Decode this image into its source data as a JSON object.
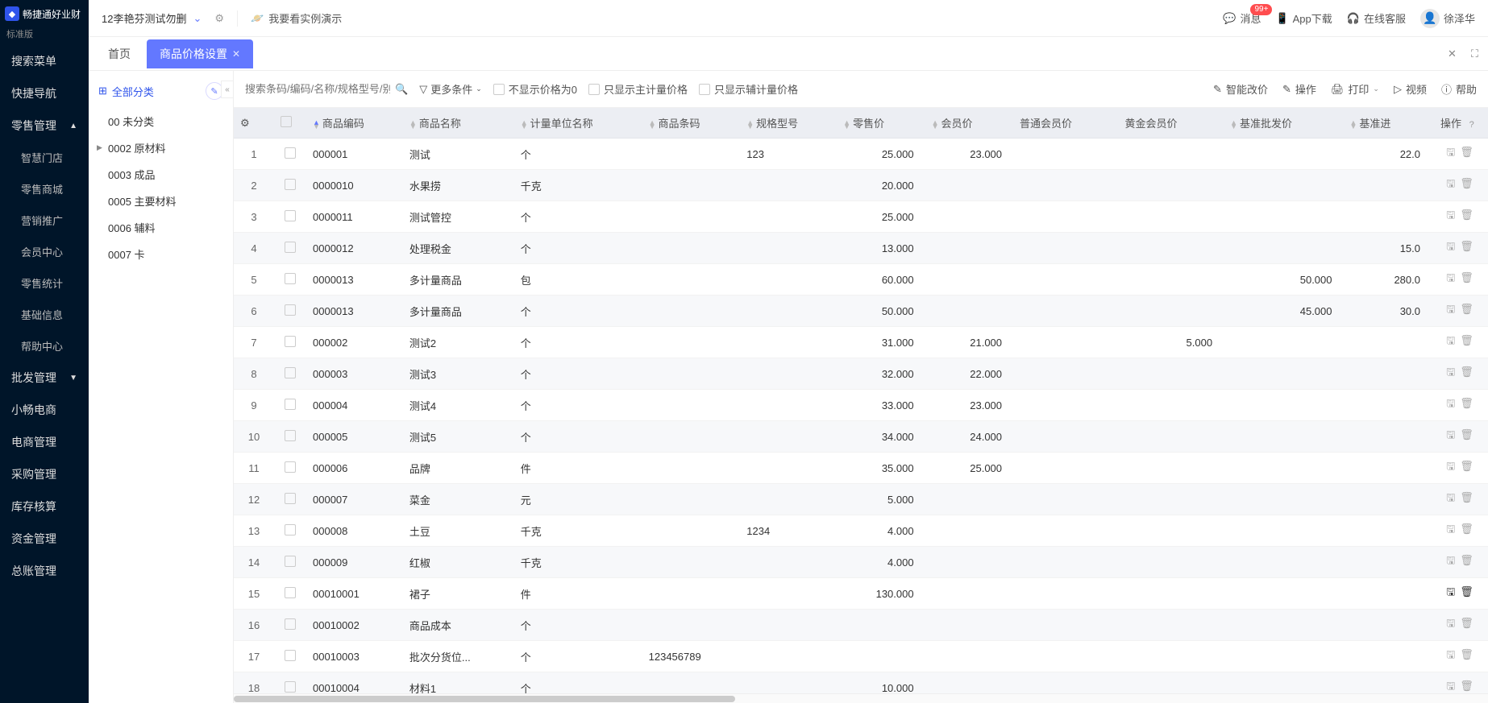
{
  "brand": {
    "name": "畅捷通好业财",
    "version": "标准版"
  },
  "top": {
    "org": "12李艳芬测试勿删",
    "demo": "我要看实例演示",
    "msg": "消息",
    "msg_badge": "99+",
    "app": "App下载",
    "service": "在线客服",
    "user": "徐泽华"
  },
  "sidemenu": {
    "search": "搜索菜单",
    "quick": "快捷导航",
    "retail": "零售管理",
    "retail_subs": [
      "智慧门店",
      "零售商城",
      "营销推广",
      "会员中心",
      "零售统计",
      "基础信息",
      "帮助中心"
    ],
    "wholesale": "批发管理",
    "items_rest": [
      "小畅电商",
      "电商管理",
      "采购管理",
      "库存核算",
      "资金管理",
      "总账管理"
    ]
  },
  "tabs": {
    "home": "首页",
    "active": "商品价格设置"
  },
  "cats": {
    "all": "全部分类",
    "items": [
      {
        "label": "00 未分类",
        "expand": false
      },
      {
        "label": "0002 原材料",
        "expand": true
      },
      {
        "label": "0003 成品",
        "expand": false
      },
      {
        "label": "0005 主要材料",
        "expand": false
      },
      {
        "label": "0006 辅料",
        "expand": false
      },
      {
        "label": "0007 卡",
        "expand": false
      }
    ]
  },
  "toolbar": {
    "search_ph": "搜索条码/编码/名称/规格型号/别名",
    "more": "更多条件",
    "opt1": "不显示价格为0",
    "opt2": "只显示主计量价格",
    "opt3": "只显示辅计量价格",
    "smart": "智能改价",
    "operate": "操作",
    "print": "打印",
    "video": "视频",
    "help": "帮助"
  },
  "columns": [
    "商品编码",
    "商品名称",
    "计量单位名称",
    "商品条码",
    "规格型号",
    "零售价",
    "会员价",
    "普通会员价",
    "黄金会员价",
    "基准批发价",
    "基准进",
    "操作"
  ],
  "rows": [
    {
      "idx": 1,
      "code": "000001",
      "name": "测试",
      "unit": "个",
      "barcode": "",
      "spec": "123",
      "retail": "25.000",
      "member": "23.000",
      "normal": "",
      "gold": "",
      "basew": "",
      "basein": "22.0"
    },
    {
      "idx": 2,
      "code": "0000010",
      "name": "水果捞",
      "unit": "千克",
      "barcode": "",
      "spec": "",
      "retail": "20.000",
      "member": "",
      "normal": "",
      "gold": "",
      "basew": "",
      "basein": ""
    },
    {
      "idx": 3,
      "code": "0000011",
      "name": "测试管控",
      "unit": "个",
      "barcode": "",
      "spec": "",
      "retail": "25.000",
      "member": "",
      "normal": "",
      "gold": "",
      "basew": "",
      "basein": ""
    },
    {
      "idx": 4,
      "code": "0000012",
      "name": "处理税金",
      "unit": "个",
      "barcode": "",
      "spec": "",
      "retail": "13.000",
      "member": "",
      "normal": "",
      "gold": "",
      "basew": "",
      "basein": "15.0"
    },
    {
      "idx": 5,
      "code": "0000013",
      "name": "多计量商品",
      "unit": "包",
      "barcode": "",
      "spec": "",
      "retail": "60.000",
      "member": "",
      "normal": "",
      "gold": "",
      "basew": "50.000",
      "basein": "280.0"
    },
    {
      "idx": 6,
      "code": "0000013",
      "name": "多计量商品",
      "unit": "个",
      "barcode": "",
      "spec": "",
      "retail": "50.000",
      "member": "",
      "normal": "",
      "gold": "",
      "basew": "45.000",
      "basein": "30.0"
    },
    {
      "idx": 7,
      "code": "000002",
      "name": "测试2",
      "unit": "个",
      "barcode": "",
      "spec": "",
      "retail": "31.000",
      "member": "21.000",
      "normal": "",
      "gold": "5.000",
      "basew": "",
      "basein": ""
    },
    {
      "idx": 8,
      "code": "000003",
      "name": "测试3",
      "unit": "个",
      "barcode": "",
      "spec": "",
      "retail": "32.000",
      "member": "22.000",
      "normal": "",
      "gold": "",
      "basew": "",
      "basein": ""
    },
    {
      "idx": 9,
      "code": "000004",
      "name": "测试4",
      "unit": "个",
      "barcode": "",
      "spec": "",
      "retail": "33.000",
      "member": "23.000",
      "normal": "",
      "gold": "",
      "basew": "",
      "basein": ""
    },
    {
      "idx": 10,
      "code": "000005",
      "name": "测试5",
      "unit": "个",
      "barcode": "",
      "spec": "",
      "retail": "34.000",
      "member": "24.000",
      "normal": "",
      "gold": "",
      "basew": "",
      "basein": ""
    },
    {
      "idx": 11,
      "code": "000006",
      "name": "品牌",
      "unit": "件",
      "barcode": "",
      "spec": "",
      "retail": "35.000",
      "member": "25.000",
      "normal": "",
      "gold": "",
      "basew": "",
      "basein": ""
    },
    {
      "idx": 12,
      "code": "000007",
      "name": "菜金",
      "unit": "元",
      "barcode": "",
      "spec": "",
      "retail": "5.000",
      "member": "",
      "normal": "",
      "gold": "",
      "basew": "",
      "basein": ""
    },
    {
      "idx": 13,
      "code": "000008",
      "name": "土豆",
      "unit": "千克",
      "barcode": "",
      "spec": "1234",
      "retail": "4.000",
      "member": "",
      "normal": "",
      "gold": "",
      "basew": "",
      "basein": ""
    },
    {
      "idx": 14,
      "code": "000009",
      "name": "红椒",
      "unit": "千克",
      "barcode": "",
      "spec": "",
      "retail": "4.000",
      "member": "",
      "normal": "",
      "gold": "",
      "basew": "",
      "basein": ""
    },
    {
      "idx": 15,
      "code": "00010001",
      "name": "裙子",
      "unit": "件",
      "barcode": "",
      "spec": "",
      "retail": "130.000",
      "member": "",
      "normal": "",
      "gold": "",
      "basew": "",
      "basein": "",
      "active": true
    },
    {
      "idx": 16,
      "code": "00010002",
      "name": "商品成本",
      "unit": "个",
      "barcode": "",
      "spec": "",
      "retail": "",
      "member": "",
      "normal": "",
      "gold": "",
      "basew": "",
      "basein": ""
    },
    {
      "idx": 17,
      "code": "00010003",
      "name": "批次分货位...",
      "unit": "个",
      "barcode": "123456789",
      "spec": "",
      "retail": "",
      "member": "",
      "normal": "",
      "gold": "",
      "basew": "",
      "basein": ""
    },
    {
      "idx": 18,
      "code": "00010004",
      "name": "材料1",
      "unit": "个",
      "barcode": "",
      "spec": "",
      "retail": "10.000",
      "member": "",
      "normal": "",
      "gold": "",
      "basew": "",
      "basein": ""
    }
  ]
}
